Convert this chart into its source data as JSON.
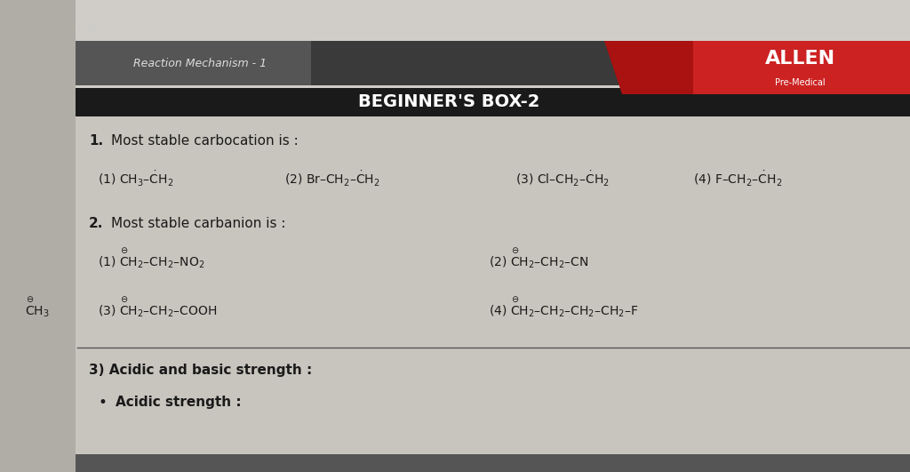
{
  "bg_color": "#d0cdc8",
  "header_bg": "#2a2a2a",
  "header_text": "BEGINNER'S BOX-2",
  "header_text_color": "#ffffff",
  "header_fontsize": 14,
  "top_bar_color": "#555555",
  "top_bar_text": "Reaction Mechanism - 1",
  "top_bar_text_color": "#dddddd",
  "allen_text": "ALLEN",
  "allen_subtext": "Pre-Medical",
  "allen_color": "#cc2222",
  "content_bg": "#c8c5be",
  "q1_label": "1.",
  "q1_text": "Most stable carbocation is :",
  "q1_options": [
    "(1) CH₃–ĊH₂",
    "(2) Br–CH₂–ĊH₂",
    "(3) Cl–CH₂–ĊH₂",
    "(4) F–CH₂–ĊH₂"
  ],
  "q2_label": "2.",
  "q2_text": "Most stable carbanion is :",
  "q2_options": [
    "(1) ĊH₂–CH₂–NO₂",
    "(2) ĊH₂–CH₂–CN",
    "(3) ĊH₂–CH₂–COOH",
    "(4) ĊH₂–CH₂–CH₂–CH₂–F"
  ],
  "q3_header": "3) Acidic and basic strength :",
  "q3_sub": "Acidic strength :",
  "left_margin_text": "ĊCH₃",
  "text_color": "#1a1a1a",
  "font_size_main": 11,
  "font_size_option": 10
}
